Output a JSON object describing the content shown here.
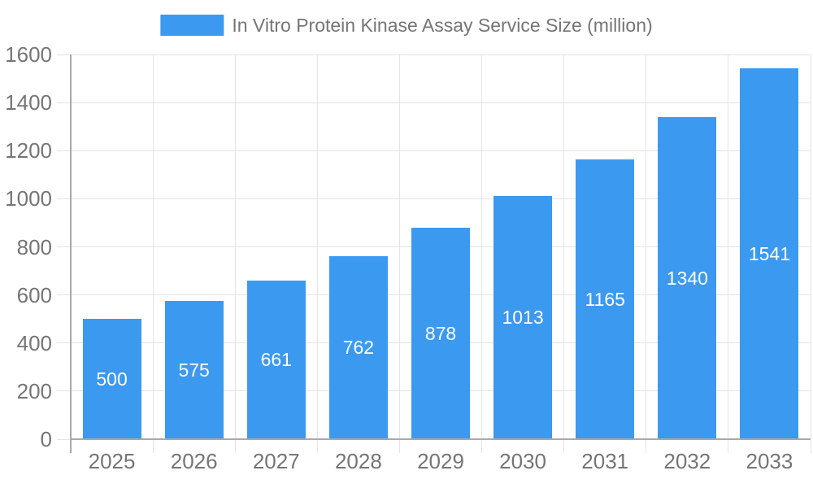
{
  "legend": {
    "label": "In Vitro Protein Kinase Assay Service Size (million)",
    "swatch_color": "#3b99f0"
  },
  "chart_data": {
    "type": "bar",
    "title": "In Vitro Protein Kinase Assay Service Size (million)",
    "categories": [
      "2025",
      "2026",
      "2027",
      "2028",
      "2029",
      "2030",
      "2031",
      "2032",
      "2033"
    ],
    "values": [
      500,
      575,
      661,
      762,
      878,
      1013,
      1165,
      1340,
      1541
    ],
    "xlabel": "",
    "ylabel": "",
    "ylim": [
      0,
      1600
    ],
    "yticks": [
      0,
      200,
      400,
      600,
      800,
      1000,
      1200,
      1400,
      1600
    ],
    "grid": true,
    "legend_position": "top-center",
    "colors": {
      "bar": "#3b99f0",
      "value_label": "#ffffff",
      "grid": "#e4e4e4",
      "axis": "#a9a9a9",
      "tick_label": "#757575"
    }
  }
}
